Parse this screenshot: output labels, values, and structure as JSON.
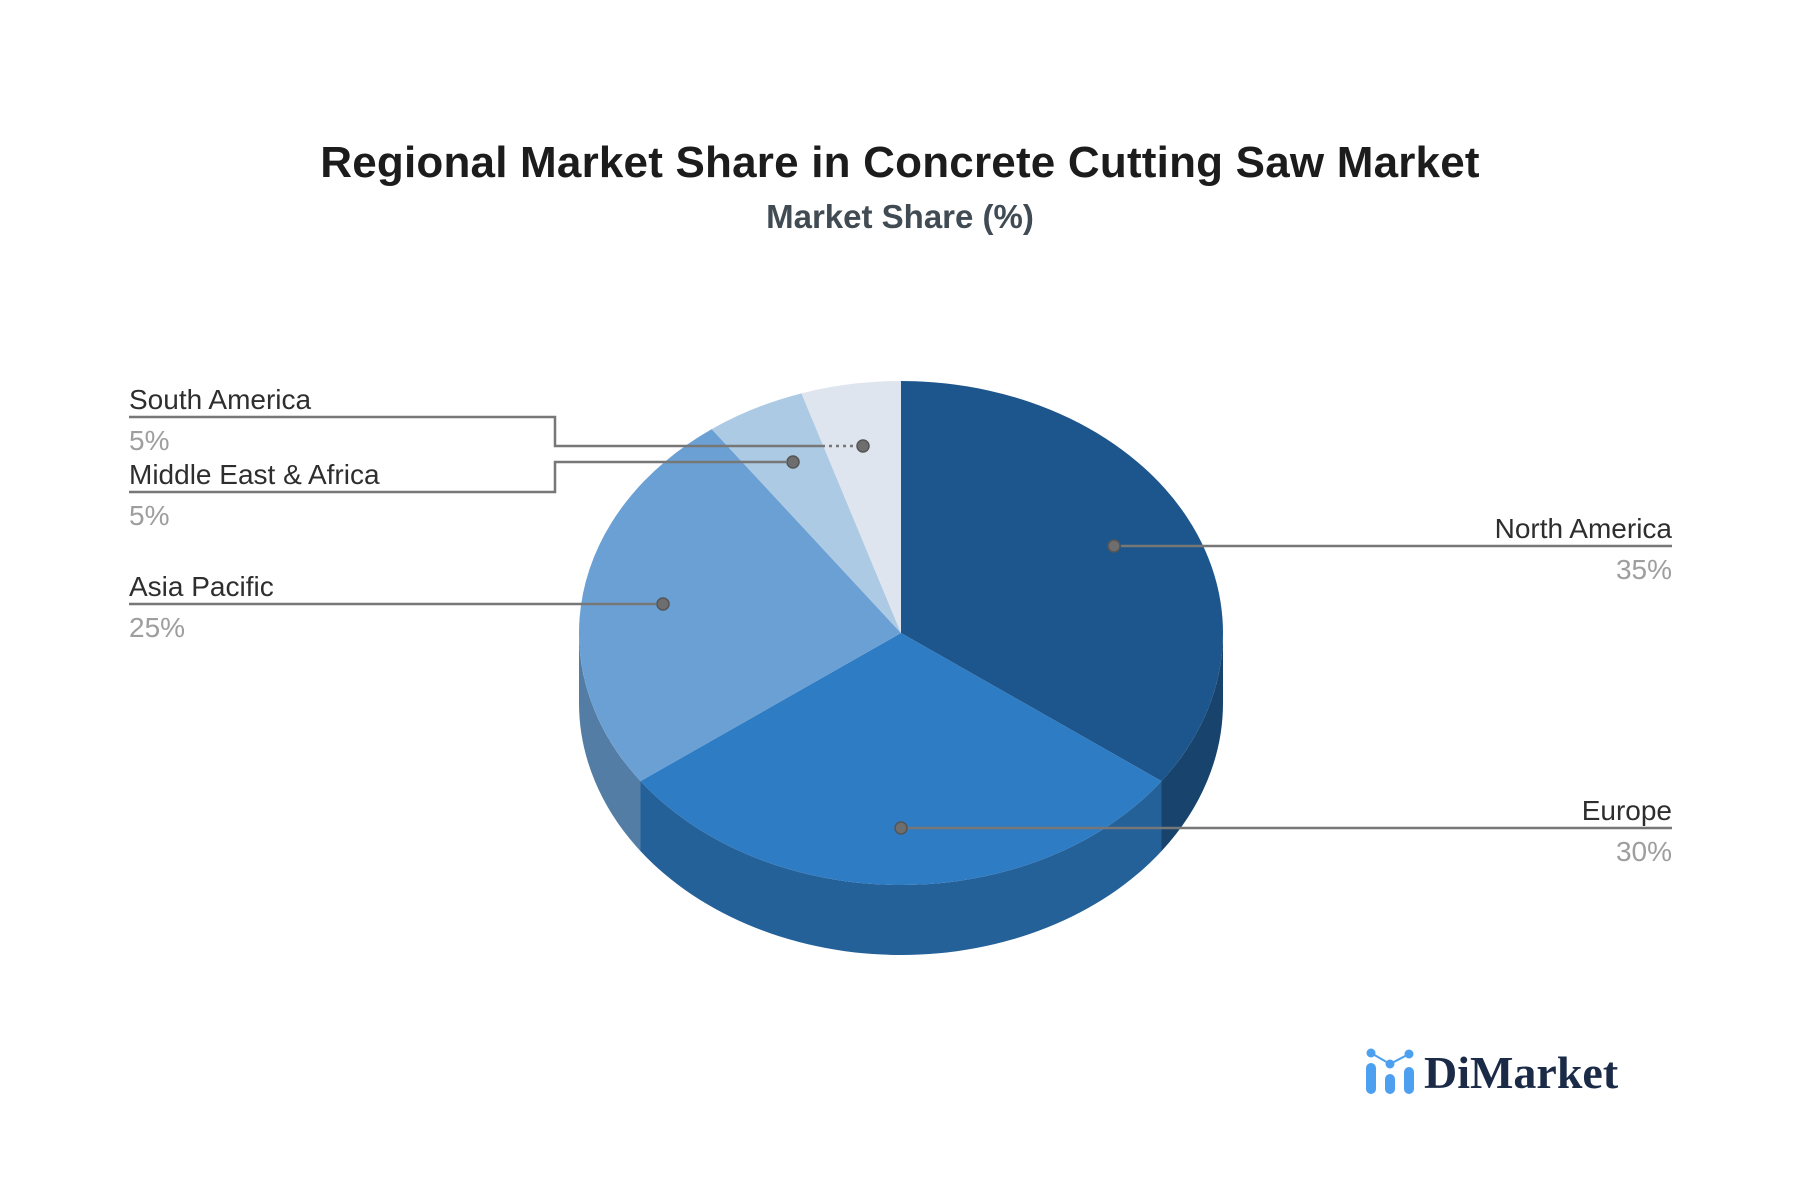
{
  "chart": {
    "title": "Regional Market Share in Concrete Cutting Saw Market",
    "subtitle": "Market Share (%)"
  },
  "chart_data": {
    "type": "pie",
    "style": "3d",
    "title": "Regional Market Share in Concrete Cutting Saw Market",
    "subtitle": "Market Share (%)",
    "unit": "%",
    "start_angle_deg": 0,
    "direction": "clockwise",
    "legend": "none",
    "connector_color": "#777777",
    "slices": [
      {
        "label": "North America",
        "value": 35,
        "color": "#1d568c"
      },
      {
        "label": "Europe",
        "value": 30,
        "color": "#2e7cc4"
      },
      {
        "label": "Asia Pacific",
        "value": 25,
        "color": "#6ba0d4"
      },
      {
        "label": "Middle East & Africa",
        "value": 5,
        "color": "#adcae4"
      },
      {
        "label": "South America",
        "value": 5,
        "color": "#dfe5ee"
      }
    ]
  },
  "callouts": [
    {
      "name": "North America",
      "pct": "35%"
    },
    {
      "name": "Europe",
      "pct": "30%"
    },
    {
      "name": "Asia Pacific",
      "pct": "25%"
    },
    {
      "name": "Middle East & Africa",
      "pct": "5%"
    },
    {
      "name": "South America",
      "pct": "5%"
    }
  ],
  "logo": {
    "text": "DiMarket"
  }
}
